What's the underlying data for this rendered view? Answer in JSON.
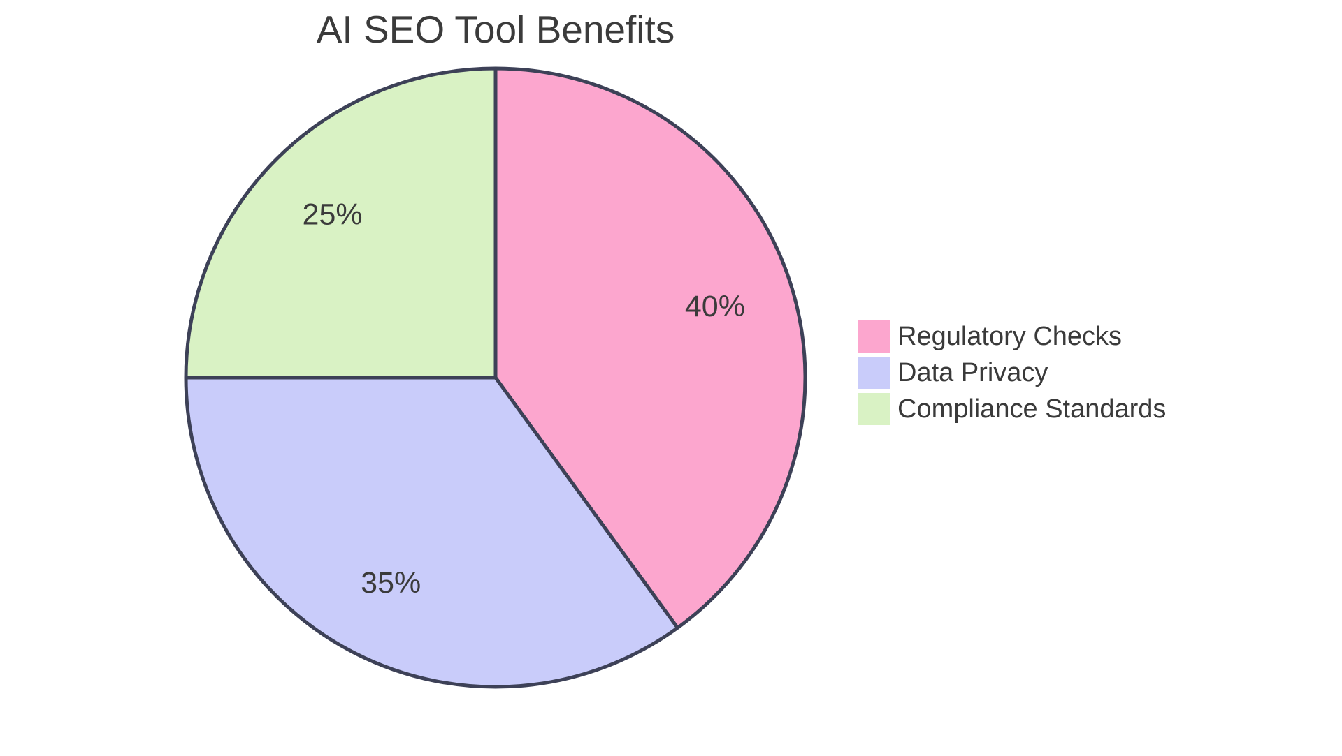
{
  "chart_data": {
    "type": "pie",
    "title": "AI SEO Tool Benefits",
    "categories": [
      "Regulatory Checks",
      "Data Privacy",
      "Compliance Standards"
    ],
    "values": [
      40,
      35,
      25
    ],
    "unit": "%",
    "slices": [
      {
        "label": "Regulatory Checks",
        "value": 40,
        "pct_label": "40%",
        "color": "#FCA6CE"
      },
      {
        "label": "Data Privacy",
        "value": 35,
        "pct_label": "35%",
        "color": "#C9CCFA"
      },
      {
        "label": "Compliance Standards",
        "value": 25,
        "pct_label": "25%",
        "color": "#D9F2C4"
      }
    ],
    "start_angle_deg": 0,
    "direction": "clockwise",
    "legend_position": "right",
    "background_color": "#FFFFFF",
    "border_color": "#3D4157",
    "border_width": 5,
    "text_color": "#3B3B3B",
    "label_radius_fraction": 0.745
  }
}
